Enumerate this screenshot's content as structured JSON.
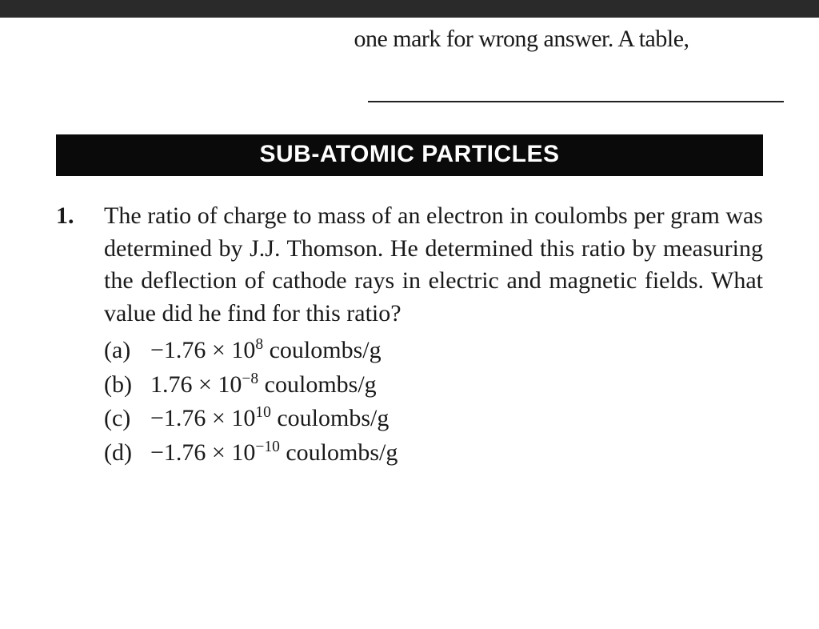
{
  "header_fragment": "one mark for wrong answer. A table,",
  "section_title": "SUB-ATOMIC PARTICLES",
  "question": {
    "number": "1.",
    "stem": "The ratio of charge to mass of an electron in coulombs per gram was determined by J.J. Thomson. He determined this ratio by measuring the deflection of cathode rays in electric and magnetic fields. What value did he find for this ratio?",
    "options": [
      {
        "label": "(a)",
        "prefix": "−1.76 × 10",
        "exp": "8",
        "suffix": " coulombs/g"
      },
      {
        "label": "(b)",
        "prefix": "1.76 × 10",
        "exp": "−8",
        "suffix": " coulombs/g"
      },
      {
        "label": "(c)",
        "prefix": "−1.76 × 10",
        "exp": "10",
        "suffix": " coulombs/g"
      },
      {
        "label": "(d)",
        "prefix": "−1.76 × 10",
        "exp": "−10",
        "suffix": " coulombs/g"
      }
    ]
  },
  "colors": {
    "banner_bg": "#0a0a0a",
    "banner_fg": "#ffffff",
    "text": "#1a1a1a",
    "top_bar": "#2a2a2a"
  },
  "typography": {
    "body_fontsize_pt": 22,
    "banner_fontsize_pt": 22,
    "font_family": "serif"
  }
}
